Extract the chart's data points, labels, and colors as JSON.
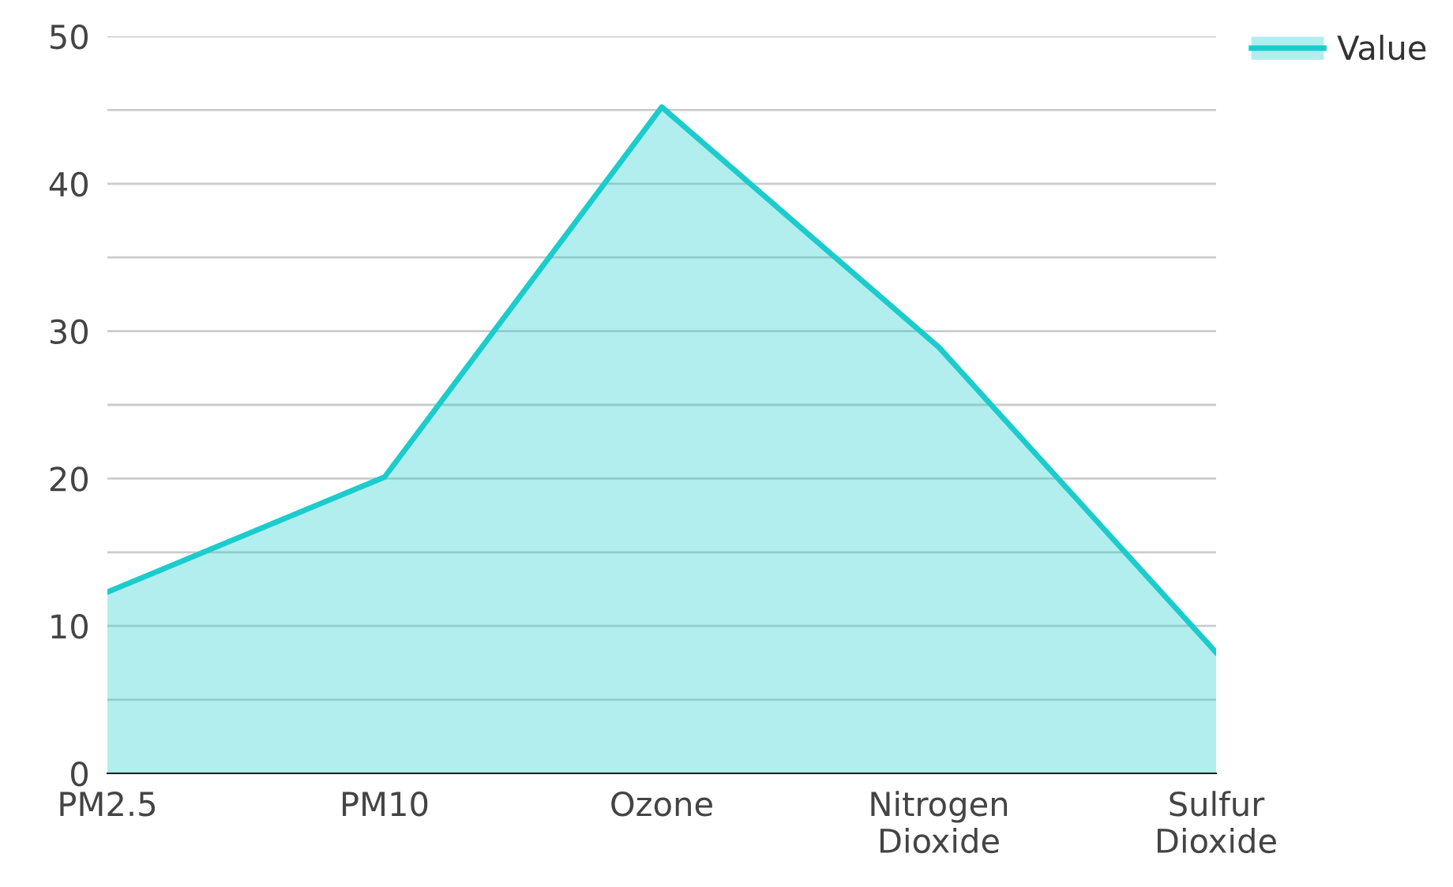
{
  "chart_data": {
    "type": "area",
    "categories": [
      "PM2.5",
      "PM10",
      "Ozone",
      "Nitrogen Dioxide",
      "Sulfur Dioxide"
    ],
    "series": [
      {
        "name": "Value",
        "color": "#1ccccc",
        "values": [
          12.3,
          20.1,
          45.2,
          28.9,
          8.2
        ]
      }
    ],
    "ylim": [
      0,
      50
    ],
    "yticks": [
      0,
      {
        "value": 5,
        "label": null
      },
      10,
      {
        "value": 15,
        "label": null
      },
      20,
      {
        "value": 25,
        "label": null
      },
      30,
      {
        "value": 35,
        "label": null
      },
      40,
      {
        "value": 45,
        "label": null
      },
      50
    ],
    "grid": "y",
    "legend": "top right"
  }
}
